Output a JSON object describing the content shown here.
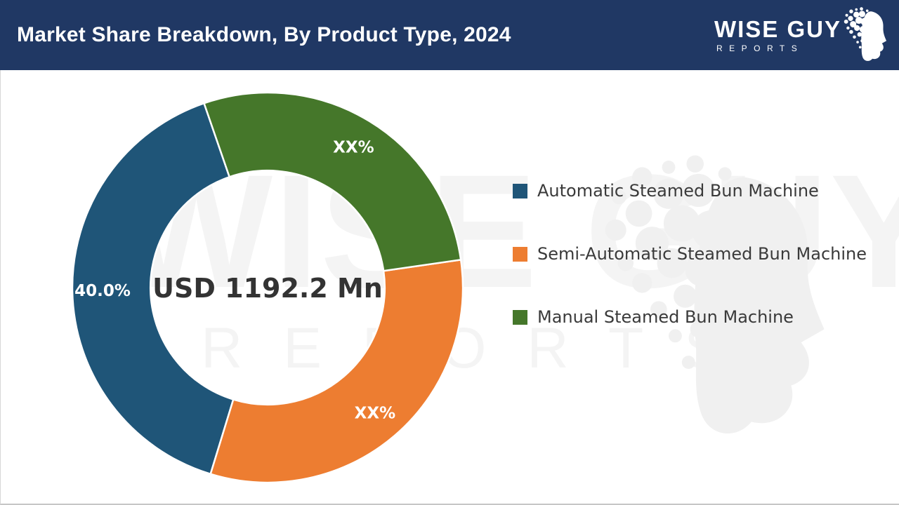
{
  "header": {
    "title": "Market Share Breakdown, By Product Type, 2024",
    "bg_color": "#203864",
    "logo": {
      "name": "WISE GUY",
      "tagline": "REPORTS"
    }
  },
  "watermark": {
    "line1": "WISE GUY",
    "line2": "REPORTS"
  },
  "chart_data": {
    "type": "pie",
    "subtype": "donut",
    "title": "Market Share Breakdown, By Product Type, 2024",
    "center_label": "USD 1192.2 Mn",
    "start_angle_deg": 109,
    "direction": "counterclockwise",
    "inner_radius_ratio": 0.6,
    "legend_position": "right",
    "series": [
      {
        "label": "Automatic Steamed Bun Machine",
        "value_pct": 40.0,
        "display_label": "40.0%",
        "color": "#1F5578"
      },
      {
        "label": "Semi-Automatic Steamed Bun Machine",
        "value_pct": 32.0,
        "display_label": "XX%",
        "color": "#ED7D31"
      },
      {
        "label": "Manual Steamed Bun Machine",
        "value_pct": 28.0,
        "display_label": "XX%",
        "color": "#45772A"
      }
    ]
  }
}
